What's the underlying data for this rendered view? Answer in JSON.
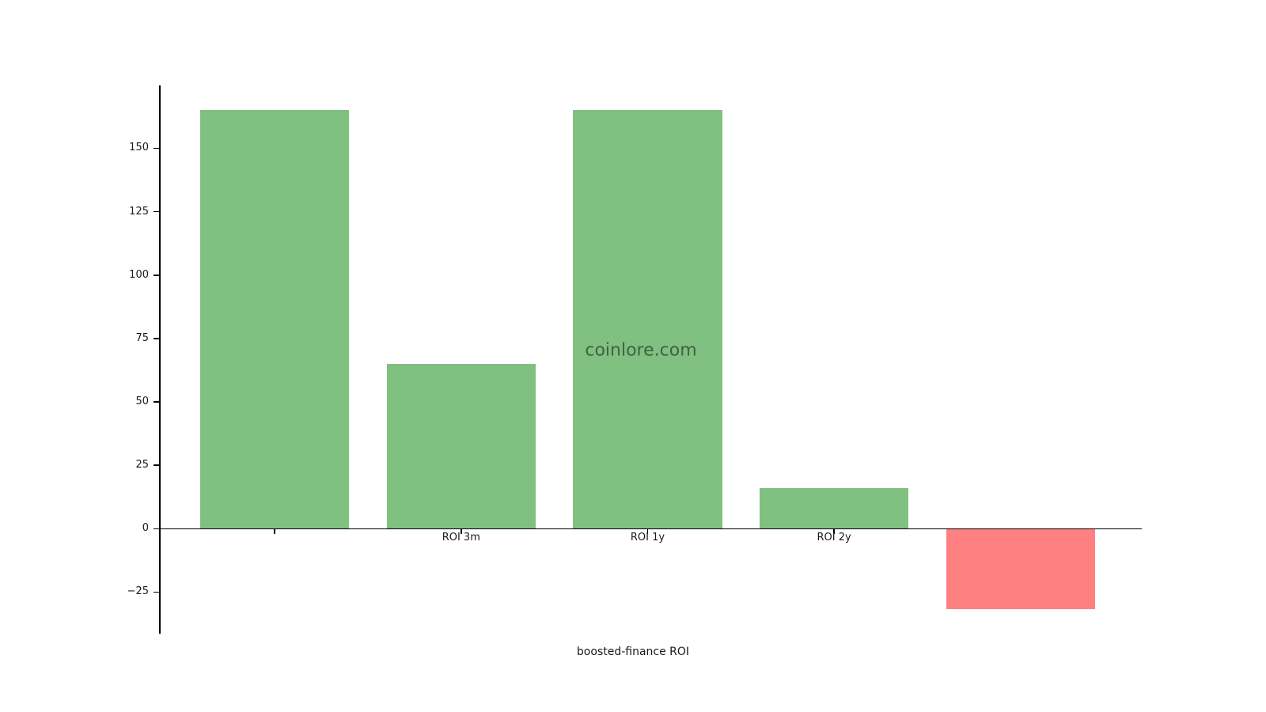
{
  "chart_data": {
    "type": "bar",
    "title": "boosted-finance ROI",
    "watermark": "coinlore.com",
    "categories": [
      "",
      "ROI 3m",
      "ROI 1y",
      "ROI 2y",
      ""
    ],
    "values": [
      165,
      65,
      165,
      16,
      -31.6
    ],
    "bar_colors": [
      "#80c080",
      "#80c080",
      "#80c080",
      "#80c080",
      "#ff8080"
    ],
    "positive_color": "#80c080",
    "negative_color": "#ff8080",
    "axis_color": "#000000",
    "text_color": "#1a1a1a",
    "yticks": [
      {
        "value": 150,
        "label": "150"
      },
      {
        "value": 125,
        "label": "125"
      },
      {
        "value": 100,
        "label": "100"
      },
      {
        "value": 75,
        "label": "75"
      },
      {
        "value": 50,
        "label": "50"
      },
      {
        "value": 25,
        "label": "25"
      },
      {
        "value": 0,
        "label": "0"
      },
      {
        "value": -25,
        "label": "−25"
      }
    ],
    "ylim": [
      -41.4,
      174.8
    ],
    "xlim": [
      -0.62,
      4.65
    ],
    "bar_width": 0.8,
    "xlabel": "",
    "ylabel": "",
    "grid": false,
    "legend": "none"
  }
}
